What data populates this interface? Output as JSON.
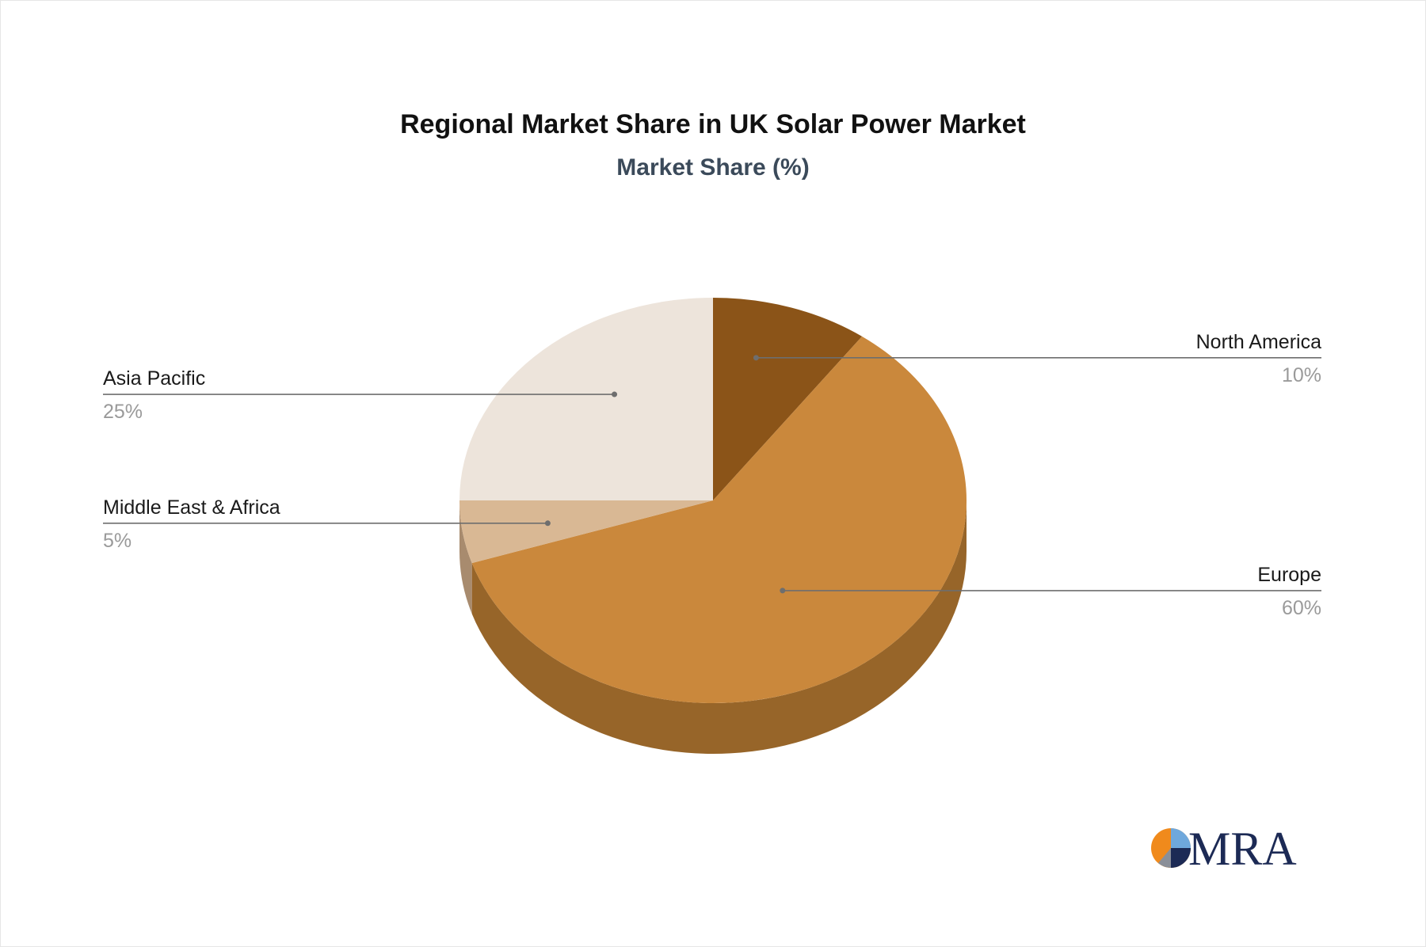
{
  "chart_data": {
    "type": "pie",
    "title": "Regional Market Share in UK Solar Power Market",
    "subtitle": "Market Share (%)",
    "categories": [
      "North America",
      "Europe",
      "Middle East & Africa",
      "Asia Pacific"
    ],
    "values": [
      10,
      60,
      5,
      25
    ],
    "value_labels": [
      "10%",
      "60%",
      "5%",
      "25%"
    ],
    "colors": [
      "#8B5418",
      "#CA883C",
      "#D9B894",
      "#EDE4DB"
    ],
    "side_colors": [
      "#6F4213",
      "#976529",
      "#A88B6E",
      "#BDB3A9"
    ],
    "style": "3d"
  },
  "logo": {
    "text": "MRA",
    "colors": [
      "#F08A1C",
      "#6FA8DC",
      "#1C2A55",
      "#8A8F98"
    ]
  }
}
